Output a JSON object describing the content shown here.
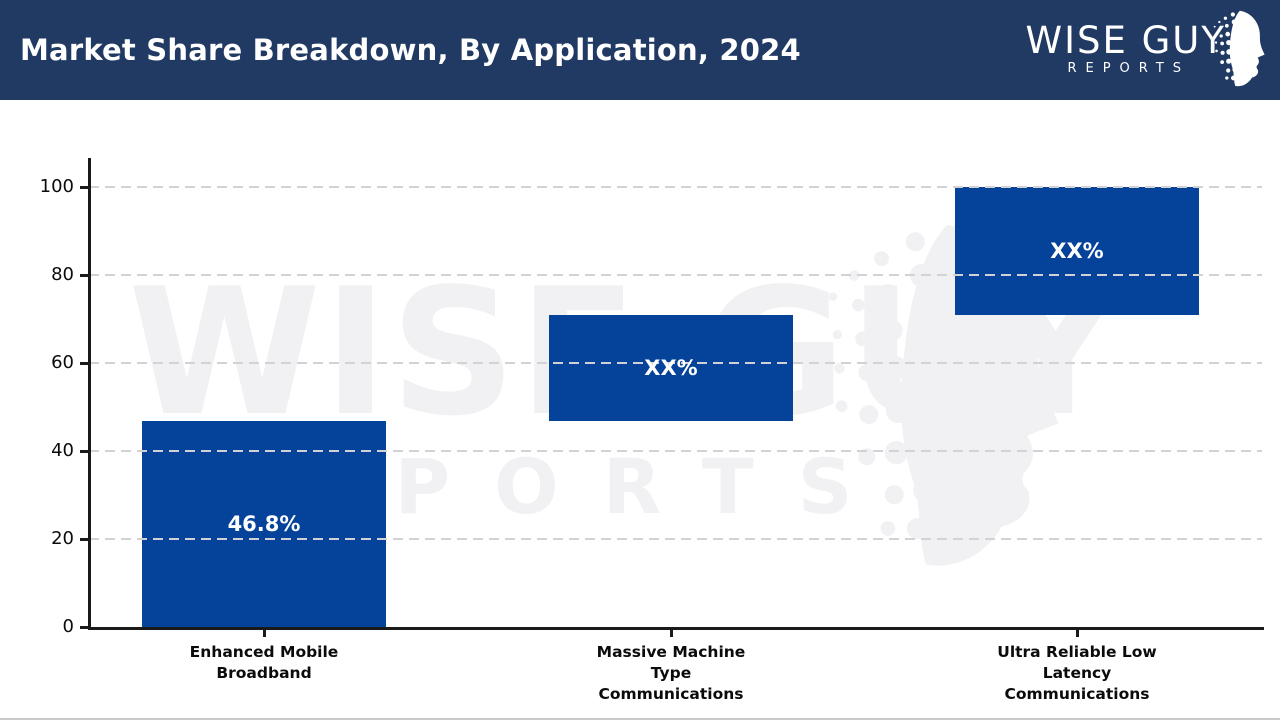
{
  "header": {
    "title": "Market Share Breakdown, By Application, 2024",
    "logo": {
      "name": "WISE GUY",
      "sub": "REPORTS"
    }
  },
  "watermark": {
    "name": "WISE GUY",
    "sub": "REPORTS"
  },
  "chart_data": {
    "type": "bar",
    "subtype": "floating-waterfall",
    "title": "Market Share Breakdown, By Application, 2024",
    "categories": [
      "Enhanced Mobile Broadband",
      "Massive Machine Type Communications",
      "Ultra Reliable Low Latency Communications"
    ],
    "category_lines": [
      [
        "Enhanced Mobile",
        "Broadband"
      ],
      [
        "Massive Machine",
        "Type",
        "Communications"
      ],
      [
        "Ultra Reliable Low",
        "Latency",
        "Communications"
      ]
    ],
    "bars": [
      {
        "category": "Enhanced Mobile Broadband",
        "start": 0,
        "end": 46.8,
        "label": "46.8%"
      },
      {
        "category": "Massive Machine Type Communications",
        "start": 46.8,
        "end": 70.8,
        "label": "XX%"
      },
      {
        "category": "Ultra Reliable Low Latency Communications",
        "start": 70.8,
        "end": 100,
        "label": "XX%"
      }
    ],
    "ylim": [
      0,
      100
    ],
    "yticks": [
      0,
      20,
      40,
      60,
      80,
      100
    ],
    "xlabel": "",
    "ylabel": "",
    "grid": "horizontal-dashed-over-bars",
    "legend": "none",
    "colors": {
      "bar": "#05429A",
      "bar_label": "#FFFFFF",
      "grid": "#D2D2D4",
      "axis": "#1A1A1A",
      "header_bg": "#213A64",
      "title_text": "#FFFFFF",
      "watermark": "#F1F1F3"
    }
  }
}
